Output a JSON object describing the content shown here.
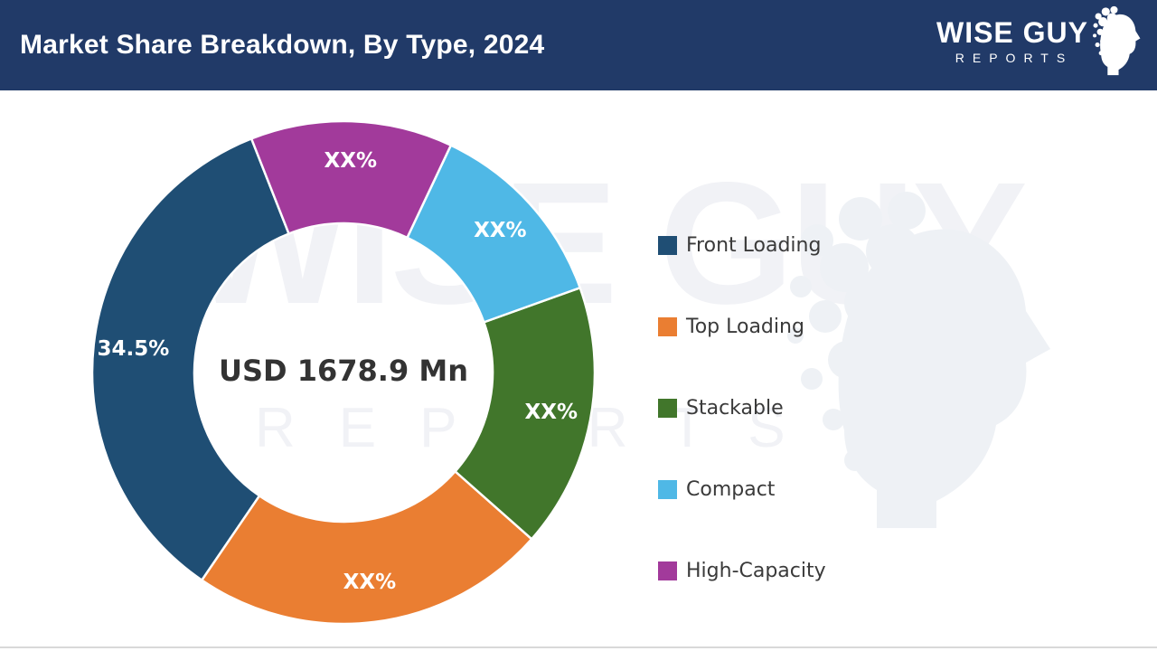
{
  "header": {
    "title": "Market Share Breakdown, By Type, 2024",
    "logo": {
      "line1": "WISE GUY",
      "line2": "REPORTS"
    }
  },
  "watermark": {
    "line1": "WISE GUY",
    "line2": "REPORTS"
  },
  "chart_data": {
    "type": "donut",
    "title": "Market Share Breakdown, By Type, 2024",
    "center_label": "USD 1678.9 Mn",
    "categories": [
      "Front Loading",
      "Top Loading",
      "Stackable",
      "Compact",
      "High-Capacity"
    ],
    "values": [
      34.5,
      23.0,
      17.0,
      12.5,
      13.0
    ],
    "slice_labels": [
      "34.5%",
      "XX%",
      "XX%",
      "XX%",
      "XX%"
    ],
    "colors": [
      "#1f4e74",
      "#ea7e32",
      "#41762b",
      "#4fb8e6",
      "#a23a9b"
    ],
    "legend_position": "right",
    "start_angle_deg": 111.5,
    "counterclockwise": true,
    "header_color": "#213a68"
  }
}
